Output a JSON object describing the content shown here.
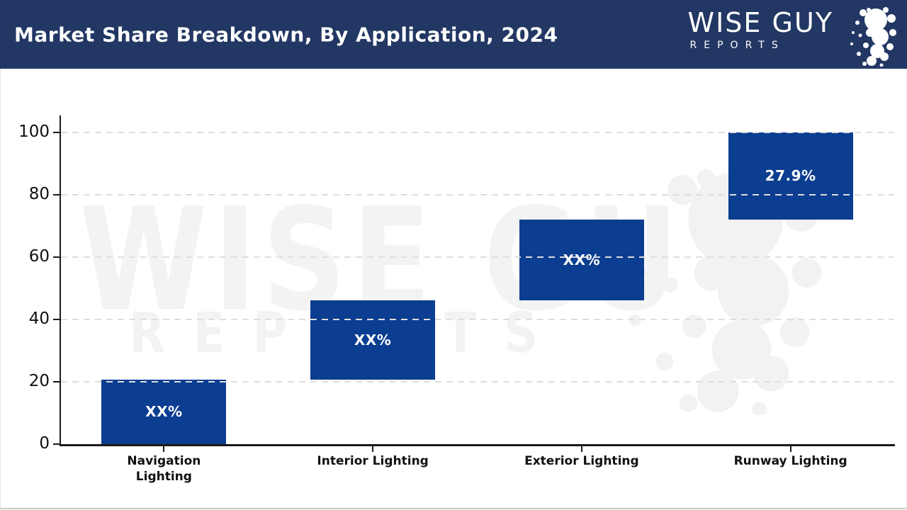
{
  "header": {
    "title": "Market Share Breakdown, By Application, 2024",
    "brand": {
      "line1": "WISE GUY",
      "line2": "REPORTS"
    }
  },
  "watermark": {
    "line1": "WISE GU",
    "line2": "REPORTS"
  },
  "colors": {
    "header_bg": "#223763",
    "bar": "#0b3d91",
    "axis": "#1a1a1a",
    "grid": "#dedede",
    "watermark": "#f3f3f3",
    "bar_label_text": "#ffffff"
  },
  "chart_data": {
    "type": "bar",
    "subtype": "floating-waterfall",
    "title": "Market Share Breakdown, By Application, 2024",
    "xlabel": "",
    "ylabel": "",
    "categories": [
      "Navigation\nLighting",
      "Interior Lighting",
      "Exterior Lighting",
      "Runway Lighting"
    ],
    "bars": [
      {
        "category": "Navigation\nLighting",
        "start": 0,
        "end": 20.7,
        "label": "XX%"
      },
      {
        "category": "Interior Lighting",
        "start": 20.7,
        "end": 46.1,
        "label": "XX%"
      },
      {
        "category": "Exterior Lighting",
        "start": 46.1,
        "end": 72.1,
        "label": "XX%"
      },
      {
        "category": "Runway Lighting",
        "start": 72.1,
        "end": 100,
        "label": "27.9%"
      }
    ],
    "bar_color": "#0b3d91",
    "yticks": [
      0,
      20,
      40,
      60,
      80,
      100
    ],
    "ylim": [
      0,
      105
    ],
    "grid": "horizontal-dashed-over-bars",
    "legend": "none"
  }
}
